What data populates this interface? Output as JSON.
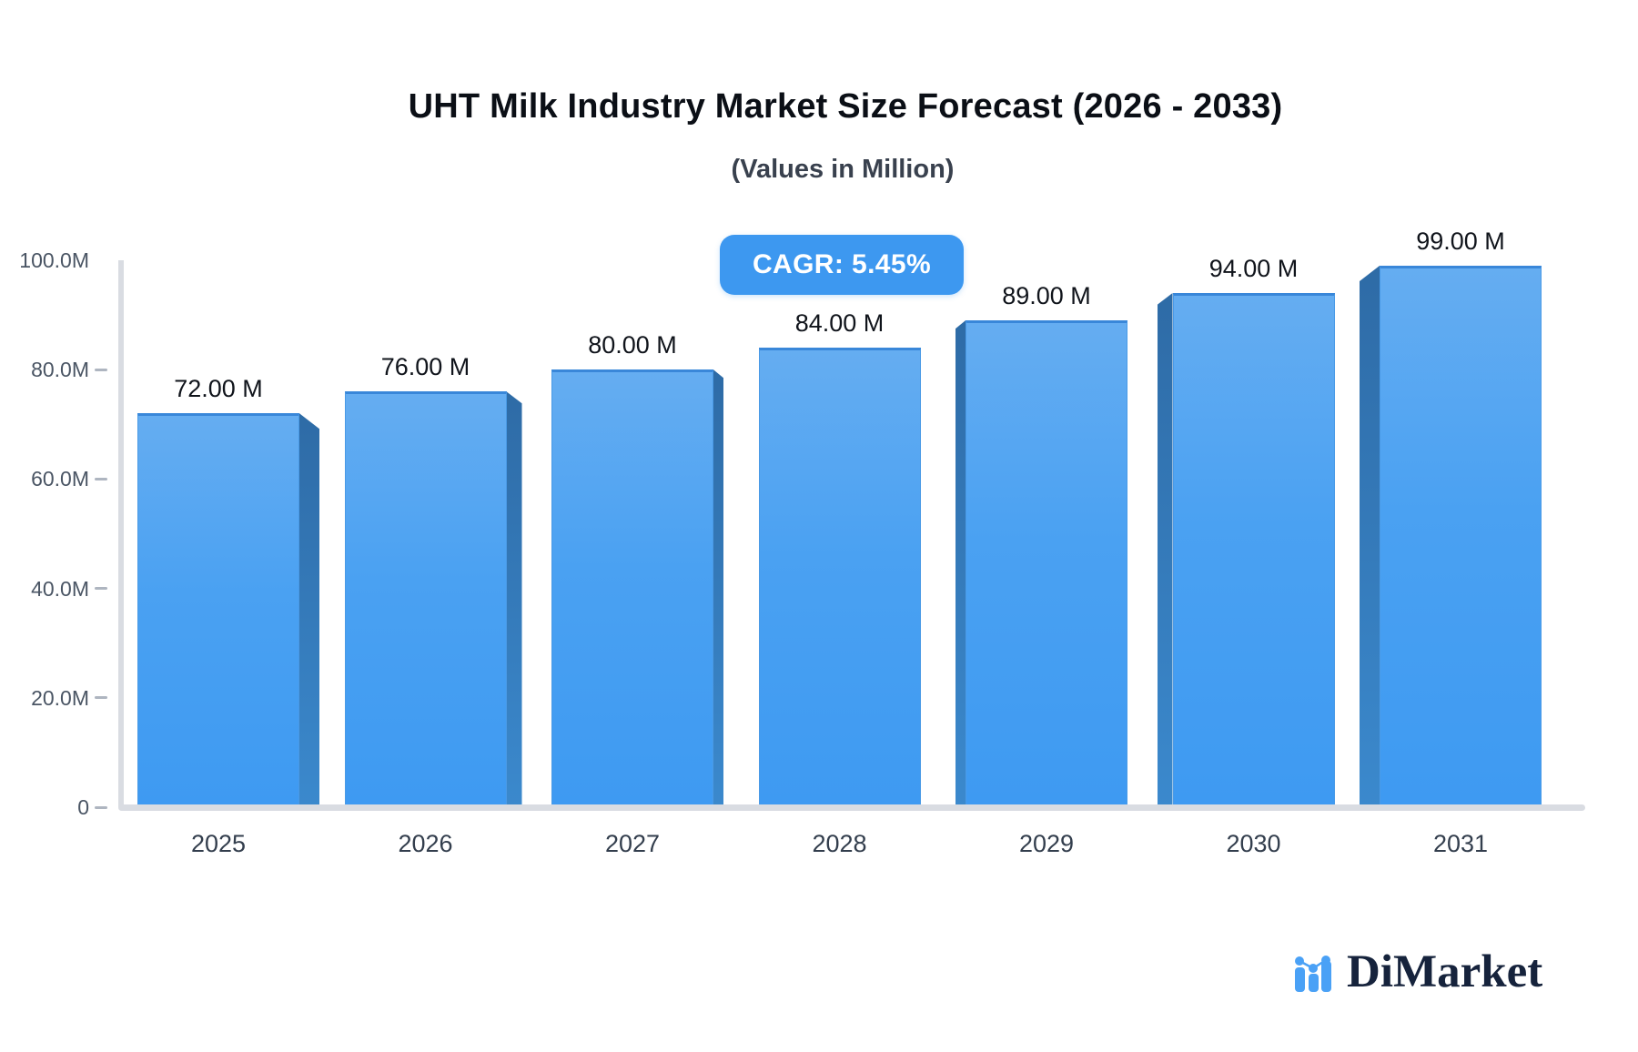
{
  "chart_data": {
    "type": "bar",
    "title": "UHT Milk Industry Market Size Forecast (2026 - 2033)",
    "subtitle": "(Values in Million)",
    "annotation_cagr": "CAGR: 5.45%",
    "categories": [
      "2025",
      "2026",
      "2027",
      "2028",
      "2029",
      "2030",
      "2031"
    ],
    "values": [
      72,
      76,
      80,
      84,
      89,
      94,
      99
    ],
    "value_labels": [
      "72.00 M",
      "76.00 M",
      "80.00 M",
      "84.00 M",
      "89.00 M",
      "94.00 M",
      "99.00 M"
    ],
    "unit": "Million",
    "xlabel": "",
    "ylabel": "",
    "ylim": [
      0,
      100
    ],
    "y_ticks": [
      {
        "label": "100.0M",
        "value": 100,
        "dash": false
      },
      {
        "label": "80.0M",
        "value": 80,
        "dash": true
      },
      {
        "label": "60.0M",
        "value": 60,
        "dash": true
      },
      {
        "label": "40.0M",
        "value": 40,
        "dash": true
      },
      {
        "label": "20.0M",
        "value": 20,
        "dash": true
      },
      {
        "label": "0",
        "value": 0,
        "dash": true
      }
    ],
    "grid": "off",
    "legend": "none",
    "style": "3d-perspective-bars",
    "colors": {
      "bar_face_top": "#65adf1",
      "bar_face_bottom": "#3e9af2",
      "bar_side": "#2e6ba6",
      "badge_bg": "#3d98f0",
      "badge_text": "#ffffff",
      "axis_gray": "#d9dce2",
      "title_text": "#0b0f16"
    }
  },
  "footer": {
    "brand": "DiMarket"
  }
}
